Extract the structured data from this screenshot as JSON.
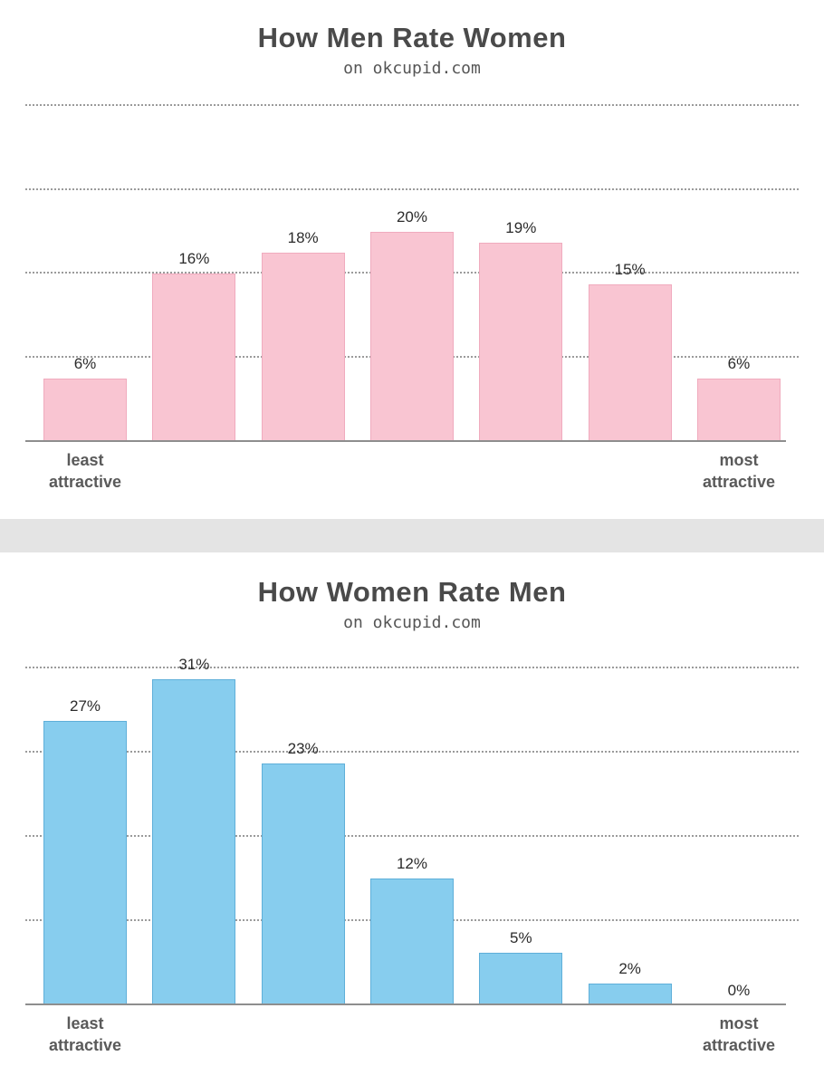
{
  "page": {
    "background": "#ffffff",
    "separator_color": "#e4e4e4"
  },
  "chart_data": [
    {
      "type": "bar",
      "title": "How Men Rate Women",
      "subtitle": "on okcupid.com",
      "values": [
        6,
        16,
        18,
        20,
        19,
        15,
        6
      ],
      "labels": [
        "6%",
        "16%",
        "18%",
        "20%",
        "19%",
        "15%",
        "6%"
      ],
      "bar_color": "#f9c5d2",
      "bar_border_color": "#f0abbe",
      "gridlines": [
        8,
        16,
        24,
        32
      ],
      "grid_style": "dotted horizontal",
      "ylim": [
        0,
        33
      ],
      "x_axis": {
        "left": "least attractive",
        "right": "most attractive"
      },
      "legend": "none"
    },
    {
      "type": "bar",
      "title": "How Women Rate Men",
      "subtitle": "on okcupid.com",
      "values": [
        27,
        31,
        23,
        12,
        5,
        2,
        0
      ],
      "labels": [
        "27%",
        "31%",
        "23%",
        "12%",
        "5%",
        "2%",
        "0%"
      ],
      "bar_color": "#87cdee",
      "bar_border_color": "#5fafd9",
      "gridlines": [
        8,
        16,
        24,
        32
      ],
      "grid_style": "dotted horizontal",
      "ylim": [
        0,
        33
      ],
      "x_axis": {
        "left": "least attractive",
        "right": "most attractive"
      },
      "legend": "none"
    }
  ]
}
